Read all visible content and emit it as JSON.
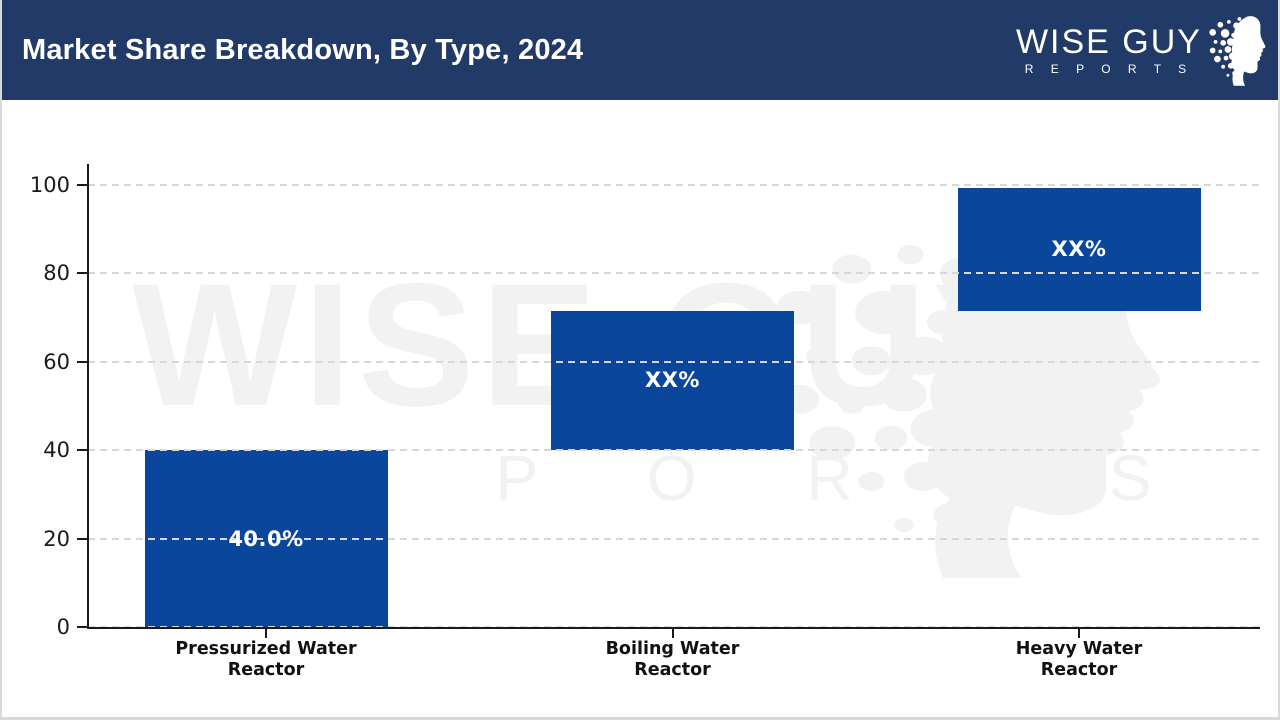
{
  "header": {
    "title": "Market Share Breakdown, By Type, 2024",
    "logo": {
      "wordmark": "WISE GUY",
      "subtext": "R E P O R T S"
    }
  },
  "watermark": {
    "wordmark": "WISE GUY",
    "subtext": "R E P O R T S"
  },
  "chart_data": {
    "type": "bar",
    "subtype": "floating-segment-waterfall",
    "title": "Market Share Breakdown, By Type, 2024",
    "categories": [
      {
        "line1": "Pressurized Water",
        "line2": "Reactor"
      },
      {
        "line1": "Boiling Water",
        "line2": "Reactor"
      },
      {
        "line1": "Heavy Water",
        "line2": "Reactor"
      }
    ],
    "bars": [
      {
        "category": "Pressurized Water Reactor",
        "start": 0,
        "end": 40,
        "label": "40.0%"
      },
      {
        "category": "Boiling Water Reactor",
        "start": 40,
        "end": 71.6,
        "label": "XX%"
      },
      {
        "category": "Heavy Water Reactor",
        "start": 71.6,
        "end": 99.4,
        "label": "XX%"
      }
    ],
    "y_ticks": [
      0,
      20,
      40,
      60,
      80,
      100
    ],
    "ylim": [
      0,
      104.7
    ],
    "xlabel": "",
    "ylabel": "",
    "grid": "horizontal-dashed",
    "legend": "none",
    "bar_color": "#0a479c",
    "bar_label_color": "#ffffff"
  },
  "colors": {
    "header_bg": "#223a68",
    "header_text": "#ffffff",
    "bar_blue": "#0a479c",
    "watermark": "#f2f2f2",
    "gridline": "#d8d8d8",
    "axis": "#1a1a1a",
    "page_border": "#d9d9d9"
  }
}
